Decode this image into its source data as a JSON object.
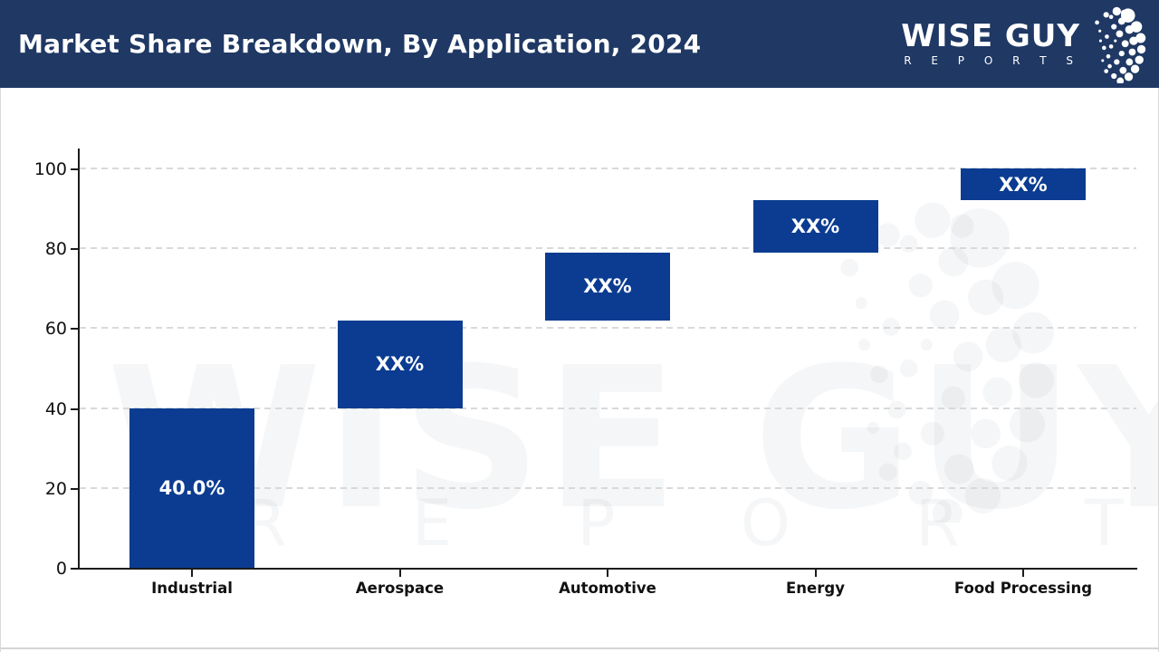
{
  "header": {
    "title": "Market Share Breakdown, By Application, 2024",
    "logo": {
      "line1": "WISE GUY",
      "line2": "R E P O R T S"
    }
  },
  "watermark": {
    "line1": "WISE GUY",
    "line2": "R E P O R T S"
  },
  "colors": {
    "header_bg": "#1f3864",
    "bar": "#0b3c91",
    "gridline": "#d9d9d9",
    "axis": "#1c1c1c",
    "bar_label_text": "#ffffff",
    "tick_text": "#111111"
  },
  "chart_data": {
    "type": "bar",
    "subtype": "waterfall",
    "title": "Market Share Breakdown, By Application, 2024",
    "categories": [
      "Industrial",
      "Aerospace",
      "Automotive",
      "Energy",
      "Food Processing"
    ],
    "segments": [
      {
        "category": "Industrial",
        "start": 0,
        "end": 40,
        "label": "40.0%"
      },
      {
        "category": "Aerospace",
        "start": 40,
        "end": 62,
        "label": "XX%"
      },
      {
        "category": "Automotive",
        "start": 62,
        "end": 79,
        "label": "XX%"
      },
      {
        "category": "Energy",
        "start": 79,
        "end": 92,
        "label": "XX%"
      },
      {
        "category": "Food Processing",
        "start": 92,
        "end": 100,
        "label": "XX%"
      }
    ],
    "yticks": [
      0,
      20,
      40,
      60,
      80,
      100
    ],
    "ylim": [
      0,
      105
    ],
    "xlabel": "",
    "ylabel": "",
    "grid": "horizontal-dashed",
    "legend": "none"
  }
}
